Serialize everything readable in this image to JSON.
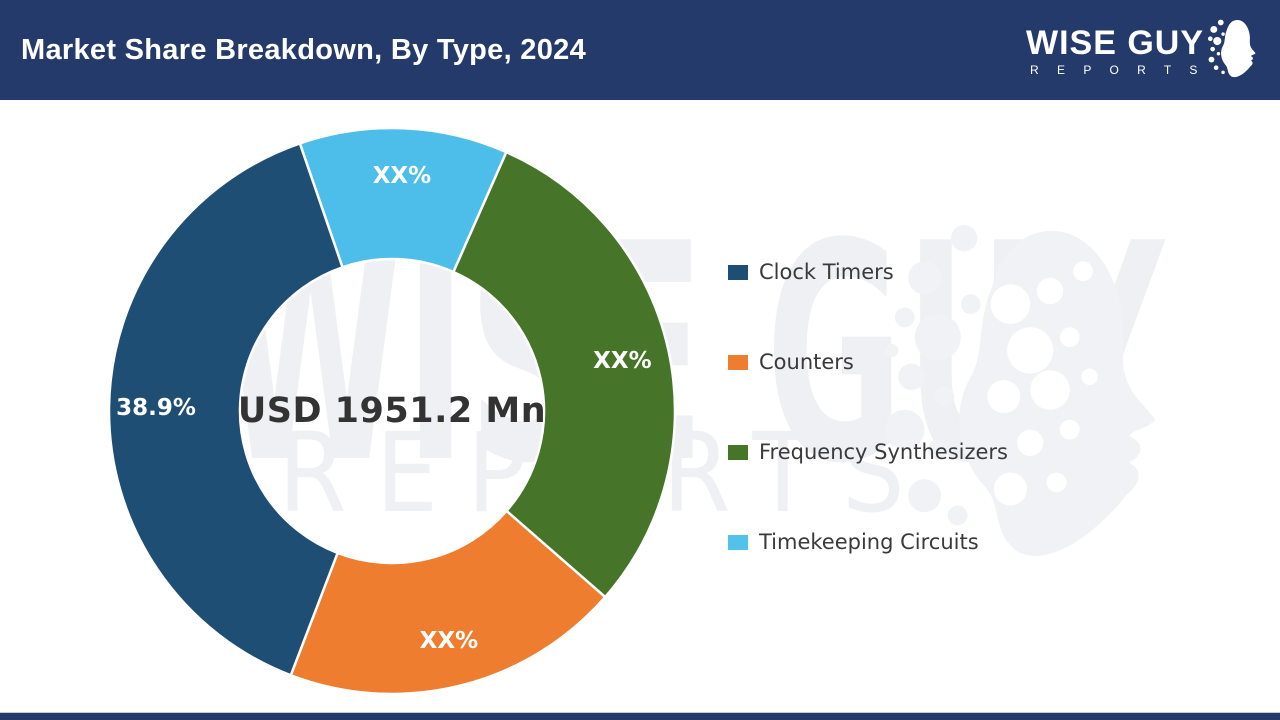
{
  "header": {
    "title": "Market Share Breakdown, By Type, 2024",
    "bg_color": "#243A6B",
    "logo": {
      "line1": "WISE GUY",
      "line2": "R E P O R T S"
    }
  },
  "chart_data": {
    "type": "pie",
    "subtype": "donut",
    "title": "Market Share Breakdown, By Type, 2024",
    "center_label": "USD 1951.2 Mn",
    "legend_position": "right",
    "start_angle_deg": -19,
    "direction": "clockwise",
    "draw_order": [
      "Timekeeping Circuits",
      "Frequency Synthesizers",
      "Counters",
      "Clock Timers"
    ],
    "series": [
      {
        "name": "Clock Timers",
        "value_pct": 38.9,
        "display_label": "38.9%",
        "color": "#1F4E74"
      },
      {
        "name": "Counters",
        "value_pct": 19.4,
        "display_label": "XX%",
        "color": "#EE7D30"
      },
      {
        "name": "Frequency Synthesizers",
        "value_pct": 29.8,
        "display_label": "XX%",
        "color": "#467428"
      },
      {
        "name": "Timekeeping Circuits",
        "value_pct": 11.9,
        "display_label": "XX%",
        "color": "#4DBDE9"
      }
    ]
  },
  "legend": {
    "items": [
      {
        "label": "Clock Timers",
        "color": "#1F4E74"
      },
      {
        "label": "Counters",
        "color": "#EE7D30"
      },
      {
        "label": "Frequency Synthesizers",
        "color": "#467428"
      },
      {
        "label": "Timekeeping Circuits",
        "color": "#52C2EB"
      }
    ]
  },
  "watermark": {
    "line1": "WISE GUY",
    "line2": "REPORTS"
  },
  "colors": {
    "header_bg": "#243A6B",
    "footer_bg": "#243A6B",
    "center_text": "#333333",
    "legend_text": "#3A3A3A",
    "watermark": "#EFF0F4"
  }
}
